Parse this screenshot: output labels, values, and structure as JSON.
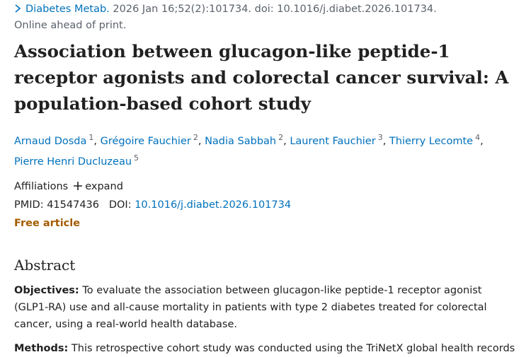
{
  "citation": {
    "journal": "Diabetes Metab.",
    "details": "2026 Jan 16;52(2):101734. doi: 10.1016/j.diabet.2026.101734."
  },
  "status": "Online ahead of print.",
  "title": "Association between glucagon-like peptide-1 receptor agonists and colorectal cancer survival: A population-based cohort study",
  "authors": [
    {
      "name": "Arnaud Dosda",
      "affiliation": "1",
      "separator": ","
    },
    {
      "name": "Grégoire Fauchier",
      "affiliation": "2",
      "separator": ","
    },
    {
      "name": "Nadia Sabbah",
      "affiliation": "2",
      "separator": ","
    },
    {
      "name": "Laurent Fauchier",
      "affiliation": "3",
      "separator": ","
    },
    {
      "name": "Thierry Lecomte",
      "affiliation": "4",
      "separator": ","
    },
    {
      "name": "Pierre Henri Ducluzeau",
      "affiliation": "5"
    }
  ],
  "affiliations": {
    "label": "Affiliations",
    "toggle": "expand"
  },
  "identifiers": {
    "pmid_label": "PMID:",
    "pmid": "41547436",
    "doi_label": "DOI:",
    "doi": "10.1016/j.diabet.2026.101734"
  },
  "access": "Free article",
  "abstract": {
    "heading": "Abstract",
    "sections": [
      {
        "label": "Objectives:",
        "text": "To evaluate the association between glucagon-like peptide-1 receptor agonist (GLP1-RA) use and all-cause mortality in patients with type 2 diabetes treated for colorectal cancer, using a real-world health database."
      },
      {
        "label": "Methods:",
        "text": "This retrospective cohort study was conducted using the TriNetX global health records"
      }
    ]
  }
}
